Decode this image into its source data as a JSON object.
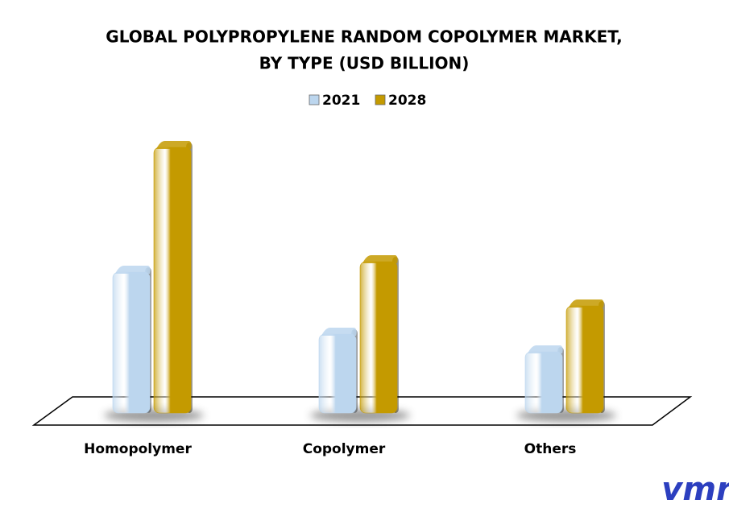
{
  "chart_data": {
    "type": "bar3d",
    "title": [
      "GLOBAL POLYPROPYLENE RANDOM COPOLYMER MARKET,",
      "BY TYPE (USD BILLION)"
    ],
    "categories": [
      "Homopolymer",
      "Copolymer",
      "Others"
    ],
    "series": [
      {
        "name": "2021",
        "color": "#bcd6ee",
        "values": [
          1.75,
          0.98,
          0.76
        ]
      },
      {
        "name": "2028",
        "color": "#c49a00",
        "values": [
          3.3,
          1.88,
          1.33
        ]
      }
    ],
    "logo": "vmr"
  }
}
